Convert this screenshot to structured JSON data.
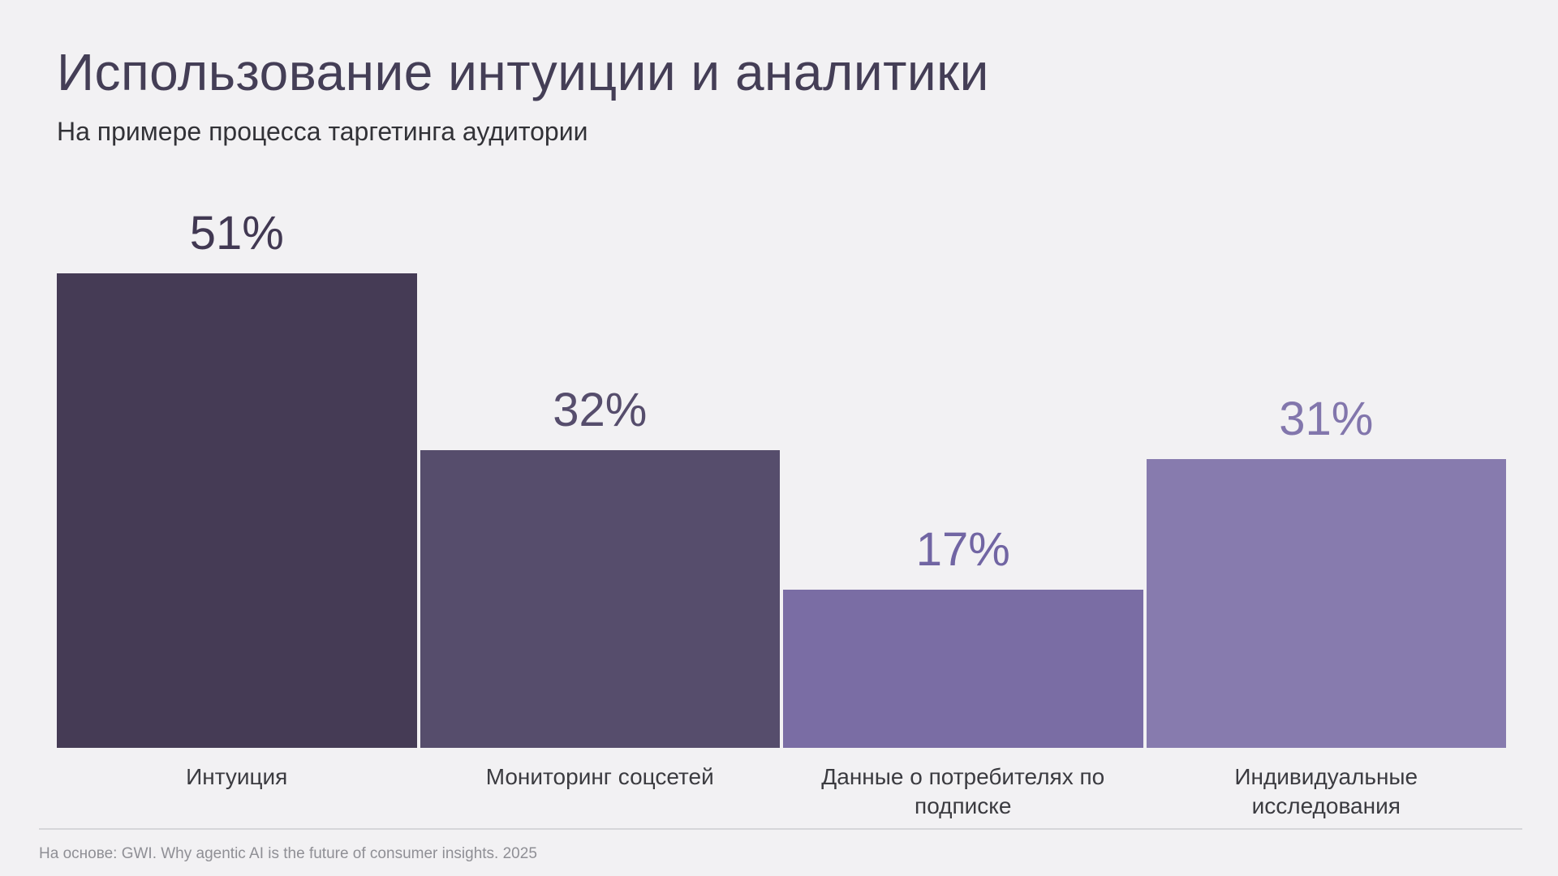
{
  "page": {
    "title": "Использование интуиции и аналитики",
    "subtitle": "На примере процесса таргетинга аудитории",
    "footer": "На основе: GWI. Why agentic AI is the future of consumer insights. 2025"
  },
  "chart_data": {
    "type": "bar",
    "title": "Использование интуиции и аналитики",
    "subtitle": "На примере процесса таргетинга аудитории",
    "categories": [
      "Интуиция",
      "Мониторинг соцсетей",
      "Данные о потребителях по подписке",
      "Индивидуальные исследования"
    ],
    "values": [
      51,
      32,
      17,
      31
    ],
    "value_labels": [
      "51%",
      "32%",
      "17%",
      "31%"
    ],
    "bar_colors": [
      "#453b55",
      "#564d6c",
      "#7a6da4",
      "#877bae"
    ],
    "label_colors": [
      "#413852",
      "#564d6c",
      "#7165a3",
      "#8276ac"
    ],
    "xlabel": "",
    "ylabel": "",
    "ylim": [
      0,
      55
    ],
    "grid": false,
    "legend": false,
    "source": "На основе: GWI. Why agentic AI is the future of consumer insights. 2025"
  }
}
